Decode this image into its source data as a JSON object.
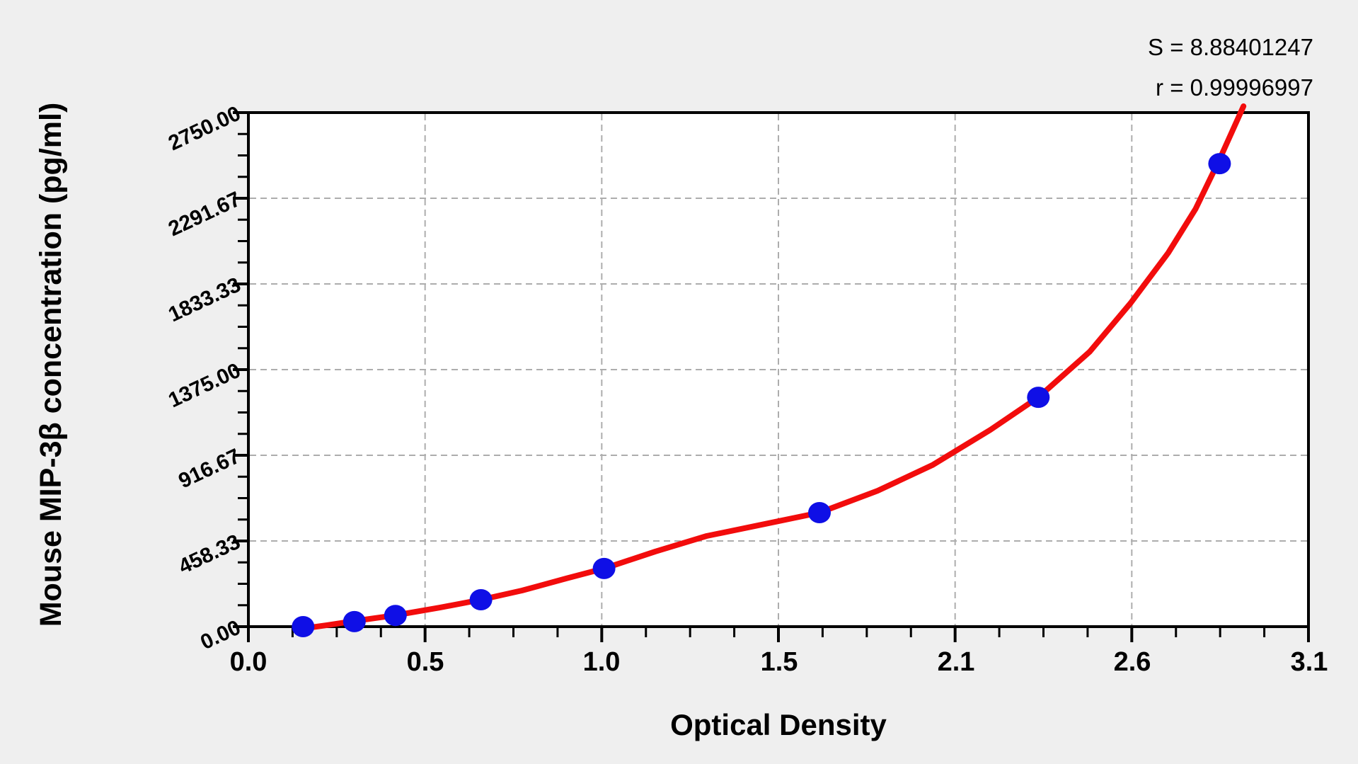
{
  "figure": {
    "background_color": "#EFEFEF",
    "plot_background_color": "#FFFFFF",
    "axis_color": "#000000",
    "grid_color": "#ADADAD"
  },
  "chart_data": {
    "type": "scatter",
    "title": "",
    "xlabel": "Optical Density",
    "ylabel": "Mouse MIP-3β concentration (pg/ml)",
    "xlim": [
      0,
      3.1
    ],
    "ylim": [
      0,
      2750
    ],
    "x_tick_labels": [
      "0.0",
      "0.5",
      "1.0",
      "1.5",
      "2.1",
      "2.6",
      "3.1"
    ],
    "y_tick_labels": [
      "0.00",
      "458.33",
      "916.67",
      "1375.00",
      "1833.33",
      "2291.67",
      "2750.00"
    ],
    "grid": "dashed gray gridlines at major ticks",
    "legend_position": "none",
    "annotations": [
      "S = 8.88401247",
      "r = 0.99996997"
    ],
    "series": [
      {
        "name": "standard-points",
        "type": "scatter",
        "color": "#0F0FE6",
        "points": [
          {
            "od": 0.16,
            "conc": 0
          },
          {
            "od": 0.31,
            "conc": 27
          },
          {
            "od": 0.43,
            "conc": 60
          },
          {
            "od": 0.68,
            "conc": 144
          },
          {
            "od": 1.04,
            "conc": 311
          },
          {
            "od": 1.67,
            "conc": 610
          },
          {
            "od": 2.31,
            "conc": 1227
          },
          {
            "od": 2.84,
            "conc": 2477
          }
        ]
      },
      {
        "name": "fitted-curve",
        "type": "line",
        "color": "#F20C0C",
        "curve": [
          [
            0.14,
            -15
          ],
          [
            0.23,
            8
          ],
          [
            0.31,
            30
          ],
          [
            0.43,
            61
          ],
          [
            0.56,
            102
          ],
          [
            0.68,
            144
          ],
          [
            0.8,
            193
          ],
          [
            0.93,
            258
          ],
          [
            1.04,
            311
          ],
          [
            1.19,
            402
          ],
          [
            1.34,
            485
          ],
          [
            1.51,
            549
          ],
          [
            1.67,
            610
          ],
          [
            1.84,
            727
          ],
          [
            2.0,
            864
          ],
          [
            2.17,
            1053
          ],
          [
            2.31,
            1227
          ],
          [
            2.46,
            1470
          ],
          [
            2.58,
            1731
          ],
          [
            2.69,
            2000
          ],
          [
            2.77,
            2235
          ],
          [
            2.84,
            2500
          ],
          [
            2.91,
            2784
          ]
        ]
      }
    ]
  }
}
